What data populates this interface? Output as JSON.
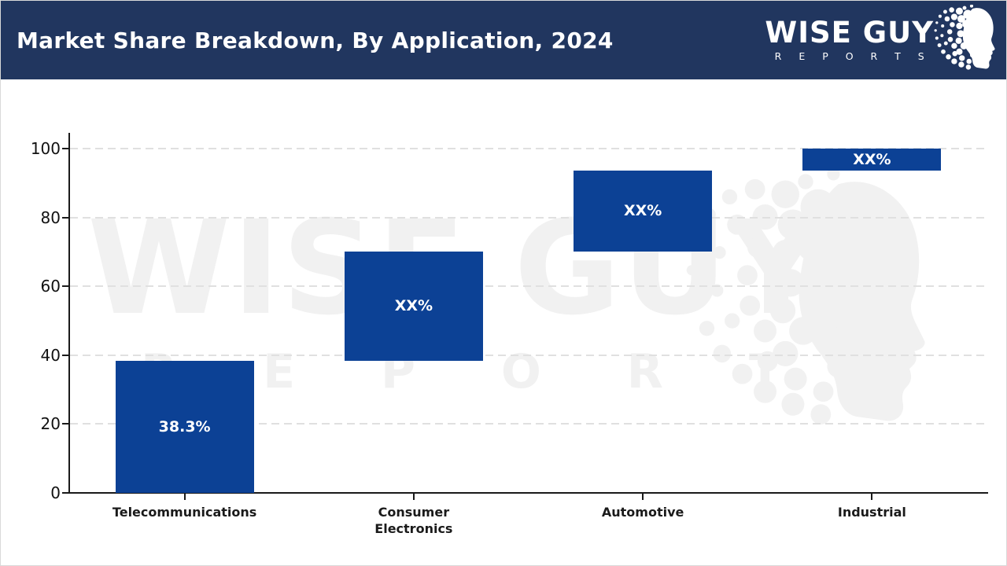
{
  "header": {
    "title": "Market Share Breakdown, By Application, 2024",
    "bg_color": "#21365f",
    "logo": {
      "wordmark": "WISE GUY",
      "subtext": "R E P O R T S"
    }
  },
  "watermark": {
    "wordmark": "WISE GUY",
    "subtext": "R E P O R T S"
  },
  "chart_data": {
    "type": "bar",
    "variant": "waterfall",
    "title": "Market Share Breakdown, By Application, 2024",
    "categories": [
      "Telecommunications",
      "Consumer Electronics",
      "Automotive",
      "Industrial"
    ],
    "categories_display": [
      [
        "Telecommunications"
      ],
      [
        "Consumer",
        "Electronics"
      ],
      [
        "Automotive"
      ],
      [
        "Industrial"
      ]
    ],
    "segments": [
      {
        "category": "Telecommunications",
        "start": 0,
        "end": 38.3,
        "label": "38.3%"
      },
      {
        "category": "Consumer Electronics",
        "start": 38.3,
        "end": 70.2,
        "label": "XX%"
      },
      {
        "category": "Automotive",
        "start": 70.2,
        "end": 93.5,
        "label": "XX%"
      },
      {
        "category": "Industrial",
        "start": 93.5,
        "end": 100,
        "label": "XX%"
      }
    ],
    "y_ticks": [
      0,
      20,
      40,
      60,
      80,
      100
    ],
    "ylim": [
      0,
      104
    ],
    "xlabel": "",
    "ylabel": "",
    "bar_color": "#0c4195",
    "grid": "horizontal-dashed",
    "legend": "none"
  }
}
